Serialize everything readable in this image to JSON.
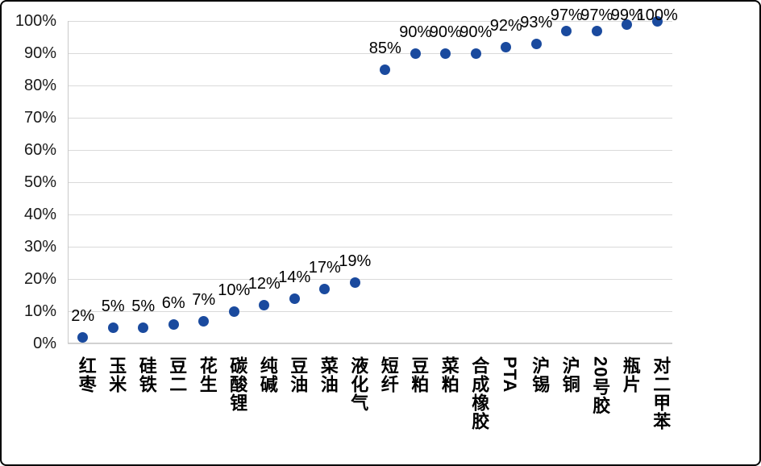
{
  "chart_data": {
    "type": "scatter",
    "title": "",
    "xlabel": "",
    "ylabel": "",
    "categories": [
      "红枣",
      "玉米",
      "硅铁",
      "豆二",
      "花生",
      "碳酸锂",
      "纯碱",
      "豆油",
      "菜油",
      "液化气",
      "短纤",
      "豆粕",
      "菜粕",
      "合成橡胶",
      "PTA",
      "沪锡",
      "沪铜",
      "20号胶",
      "瓶片",
      "对二甲苯"
    ],
    "values": [
      2,
      5,
      5,
      6,
      7,
      10,
      12,
      14,
      17,
      19,
      85,
      90,
      90,
      90,
      92,
      93,
      97,
      97,
      99,
      100
    ],
    "data_labels": [
      "2%",
      "5%",
      "5%",
      "6%",
      "7%",
      "10%",
      "12%",
      "14%",
      "17%",
      "19%",
      "85%",
      "90%",
      "90%",
      "90%",
      "92%",
      "93%",
      "97%",
      "97%",
      "99%",
      "100%"
    ],
    "y_ticks": [
      "0%",
      "10%",
      "20%",
      "30%",
      "40%",
      "50%",
      "60%",
      "70%",
      "80%",
      "90%",
      "100%"
    ],
    "ylim": [
      0,
      100
    ],
    "grid": true,
    "legend": false,
    "marker_color": "#1a4a9e",
    "gridline_color": "#d9d9d9",
    "axis_line_color": "#c9c9c9",
    "label_color": "#000000"
  }
}
